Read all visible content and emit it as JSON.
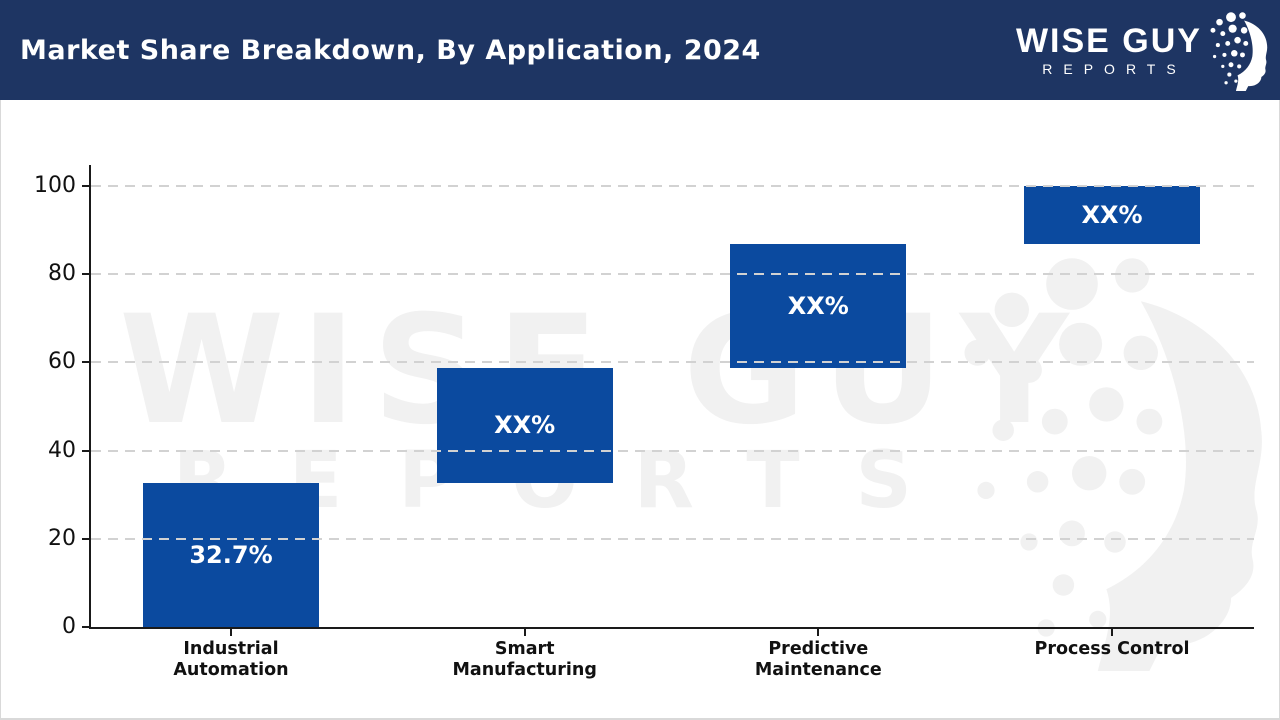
{
  "header": {
    "title": "Market Share Breakdown, By Application, 2024",
    "logo": {
      "wordmark": "WISE GUY",
      "subtext": "REPORTS"
    }
  },
  "watermark": {
    "wordmark": "WISE GUY",
    "subtext": "REPORTS"
  },
  "chart_data": {
    "type": "bar",
    "subtype": "waterfall",
    "title": "Market Share Breakdown, By Application, 2024",
    "categories": [
      [
        "Industrial",
        "Automation"
      ],
      [
        "Smart",
        "Manufacturing"
      ],
      [
        "Predictive",
        "Maintenance"
      ],
      [
        "Process Control"
      ]
    ],
    "segments": [
      {
        "name": "Industrial Automation",
        "start": 0,
        "end": 32.7,
        "label": "32.7%"
      },
      {
        "name": "Smart Manufacturing",
        "start": 32.7,
        "end": 58.7,
        "label": "XX%"
      },
      {
        "name": "Predictive Maintenance",
        "start": 58.7,
        "end": 86.8,
        "label": "XX%"
      },
      {
        "name": "Process Control",
        "start": 86.8,
        "end": 100,
        "label": "XX%"
      }
    ],
    "yticks": [
      0,
      20,
      40,
      60,
      80,
      100
    ],
    "ylim": [
      0,
      100
    ],
    "grid": "horizontal-dashed",
    "legend": "none",
    "colors": {
      "bar": "#0b4a9f",
      "bar_label": "#ffffff",
      "grid": "#d2d2d2",
      "axis": "#1a1a1a",
      "header_bg": "#1e3563",
      "watermark": "#f1f1f1"
    }
  }
}
